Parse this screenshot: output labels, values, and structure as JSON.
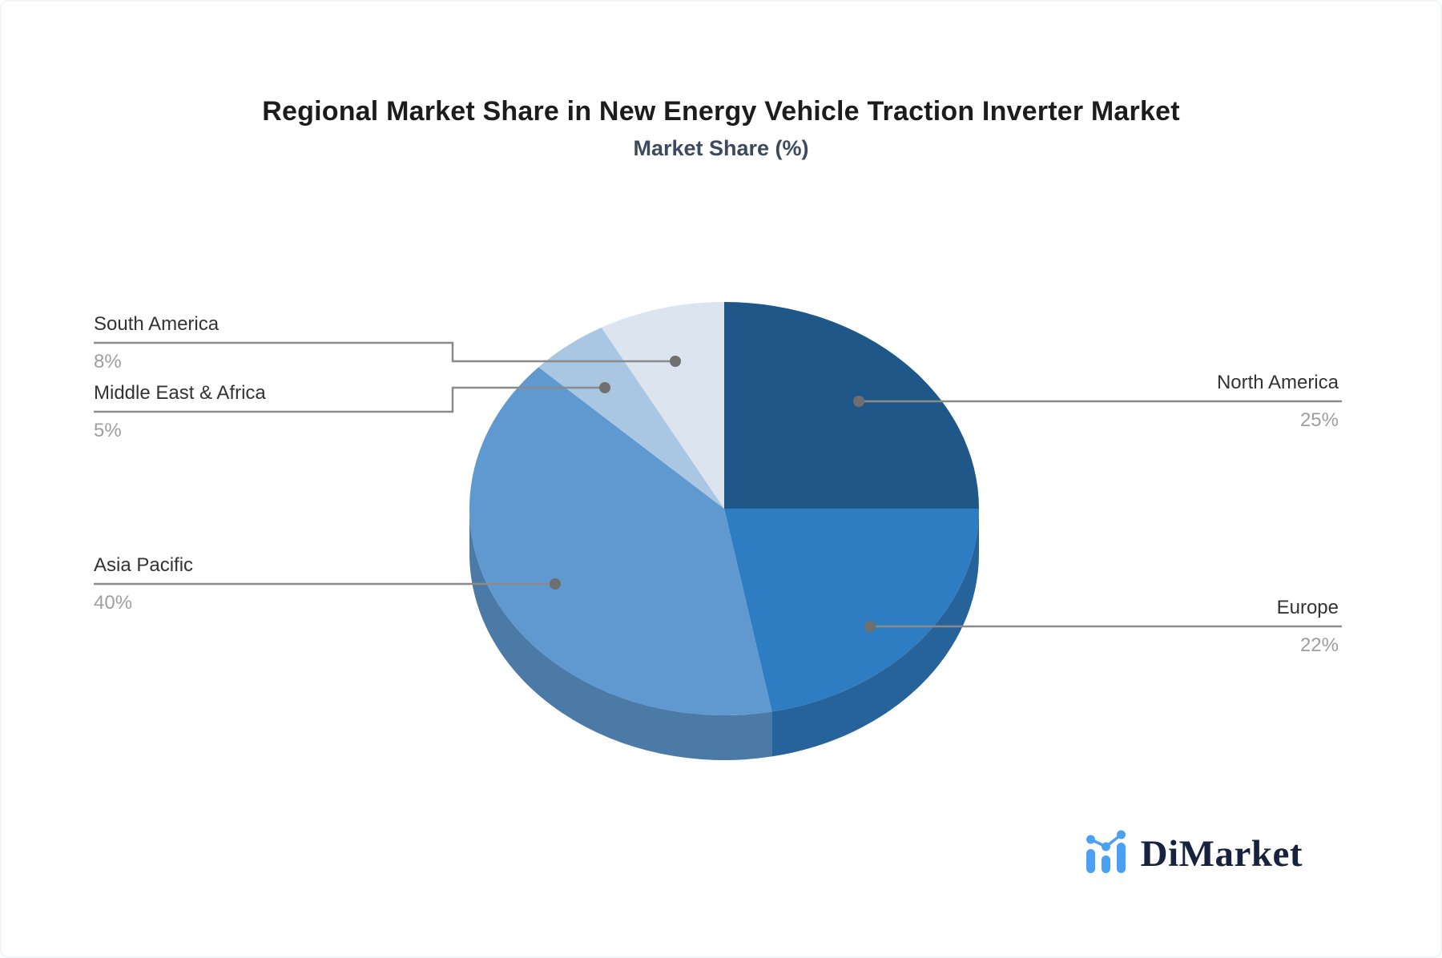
{
  "title": "Regional Market Share in New Energy Vehicle Traction Inverter Market",
  "subtitle": "Market Share (%)",
  "brand": {
    "name": "DiMarket",
    "icon": "bar-chart-logo-icon"
  },
  "chart_data": {
    "type": "pie",
    "title": "Regional Market Share in New Energy Vehicle Traction Inverter Market",
    "subtitle": "Market Share (%)",
    "style": "3d-ellipse-pie",
    "start_angle_deg_from_12_clockwise": 0,
    "legend": "none, leader-line callout labels",
    "value_suffix": "%",
    "slices": [
      {
        "label": "North America",
        "value": 25,
        "pct_label": "25%",
        "color": "#1e5788",
        "callout_side": "right"
      },
      {
        "label": "Europe",
        "value": 22,
        "pct_label": "22%",
        "color": "#2e7cc1",
        "callout_side": "right"
      },
      {
        "label": "Asia Pacific",
        "value": 40,
        "pct_label": "40%",
        "color": "#5f99d0",
        "callout_side": "left"
      },
      {
        "label": "Middle East & Africa",
        "value": 5,
        "pct_label": "5%",
        "color": "#a9c6e3",
        "callout_side": "left"
      },
      {
        "label": "South America",
        "value": 8,
        "pct_label": "8%",
        "color": "#dce4ef",
        "callout_side": "left"
      }
    ]
  }
}
